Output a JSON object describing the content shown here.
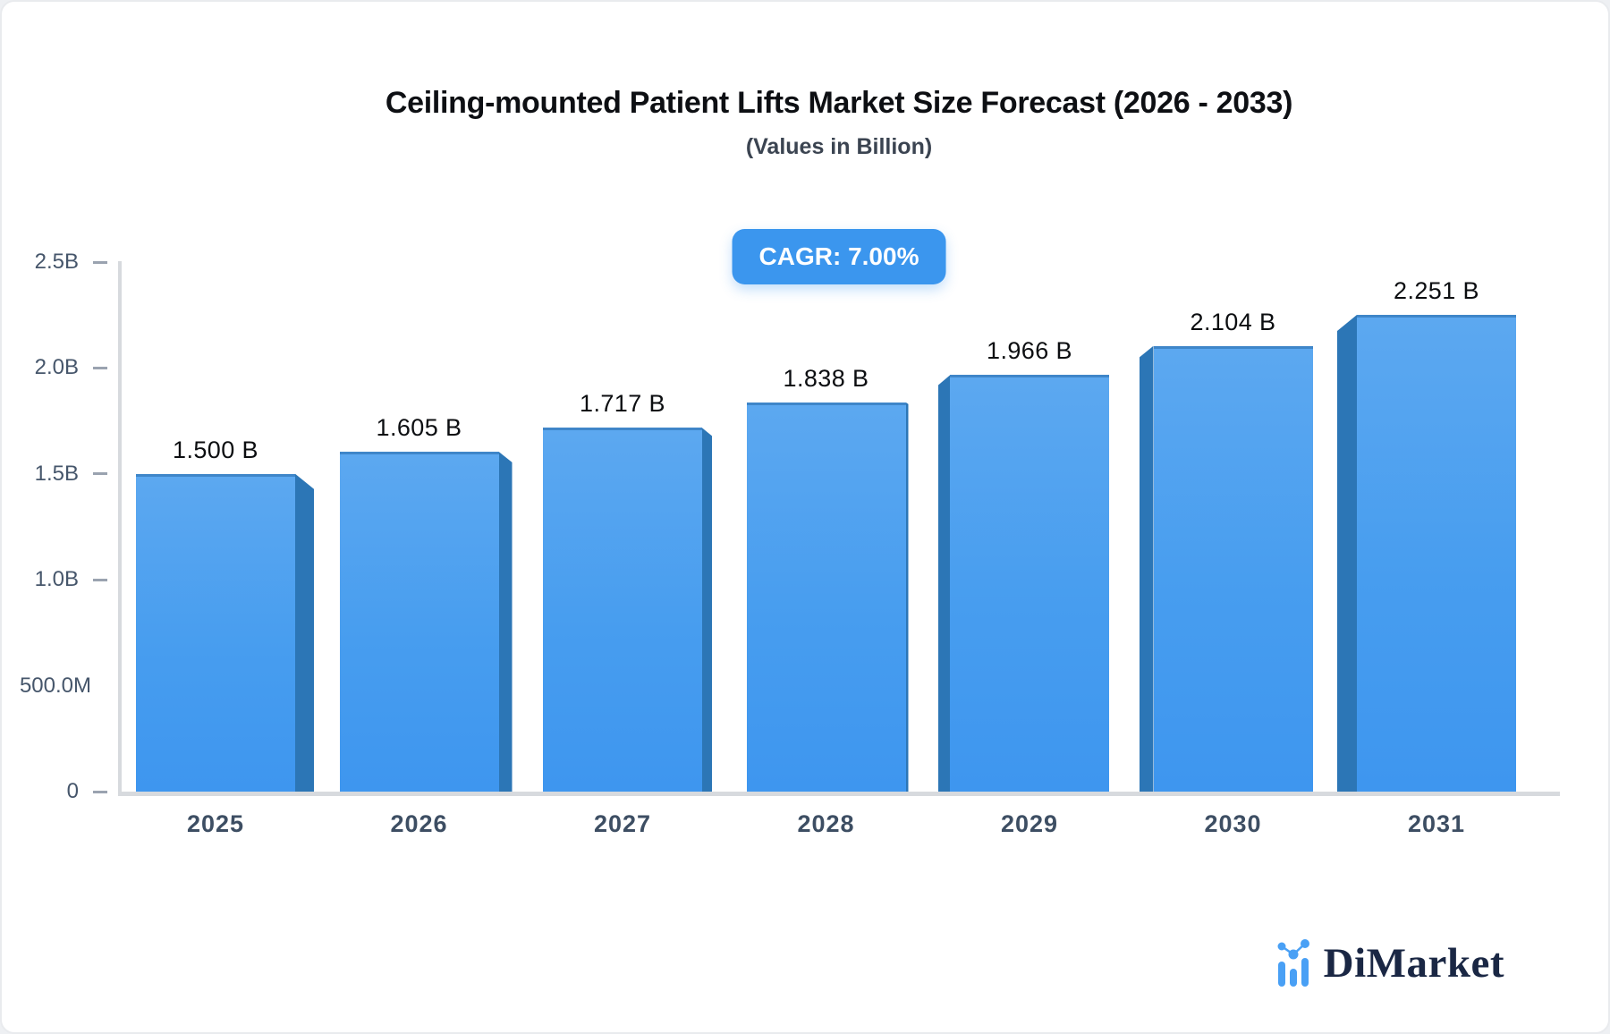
{
  "header": {
    "title": "Ceiling-mounted Patient Lifts Market Size Forecast (2026 - 2033)",
    "subtitle": "(Values in Billion)",
    "cagr_badge": "CAGR: 7.00%"
  },
  "chart_data": {
    "type": "bar",
    "title": "Ceiling-mounted Patient Lifts Market Size Forecast (2026 - 2033)",
    "subtitle": "(Values in Billion)",
    "cagr": "7.00%",
    "values_in": "Billion",
    "categories": [
      "2025",
      "2026",
      "2027",
      "2028",
      "2029",
      "2030",
      "2031"
    ],
    "values": [
      1.5,
      1.605,
      1.717,
      1.838,
      1.966,
      2.104,
      2.251
    ],
    "value_labels": [
      "1.500 B",
      "1.605 B",
      "1.717 B",
      "1.838 B",
      "1.966 B",
      "2.104 B",
      "2.251 B"
    ],
    "y_axis": {
      "range": [
        0,
        2.5
      ],
      "tick_values": [
        0,
        0.5,
        1.0,
        1.5,
        2.0,
        2.5
      ],
      "tick_labels": [
        "0",
        "500.0M",
        "1.0B",
        "1.5B",
        "2.0B",
        "2.5B"
      ],
      "dash_visible": [
        true,
        false,
        true,
        true,
        true,
        true
      ]
    },
    "grid": false,
    "legend": "none",
    "bar_style": "3d-perspective",
    "colors": {
      "bar_top": "#5CA8F0",
      "bar_bottom": "#3E96EF",
      "bar_side": "#2C76B6",
      "bar_edge": "#3F86C9",
      "axis_line": "#D7DADE",
      "tick": "#9AA3B0",
      "axis_label": "#46566B",
      "badge_bg": "#3B96EE",
      "badge_text": "#FFFFFF"
    }
  },
  "footer": {
    "brand": "DiMarket",
    "brand_icon": "bar-chart-logo-icon"
  }
}
